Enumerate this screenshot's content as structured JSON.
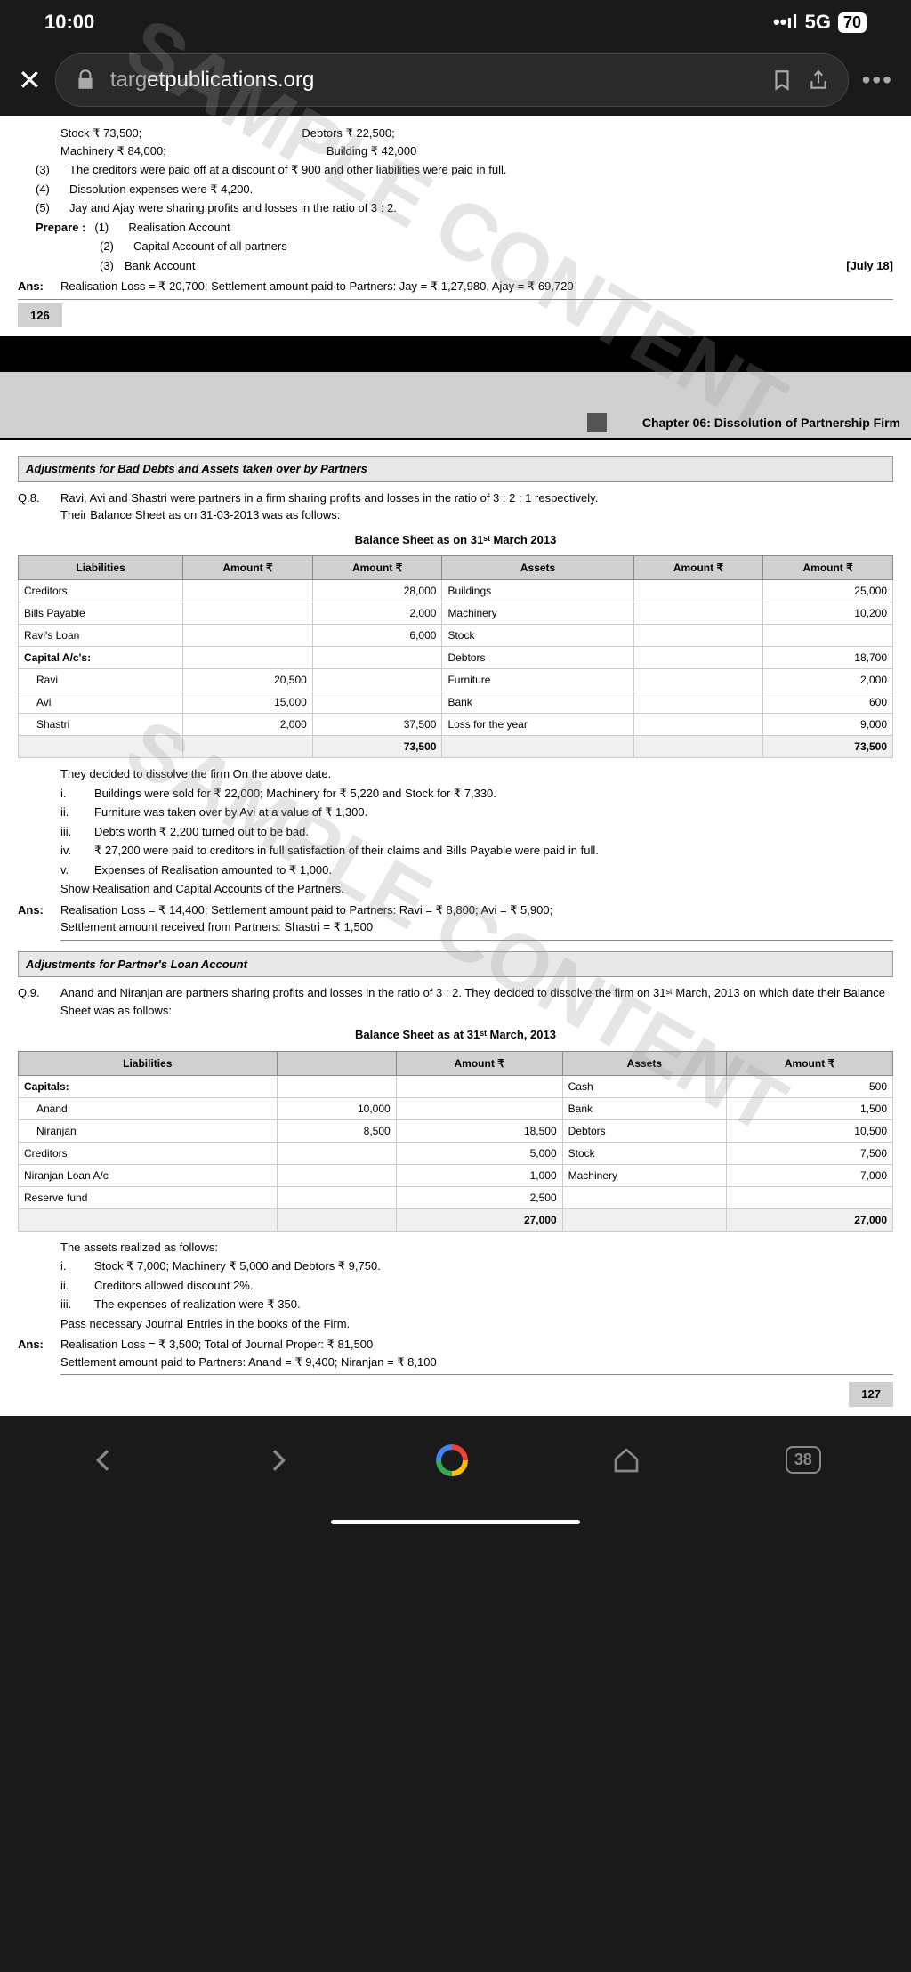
{
  "status": {
    "time": "10:00",
    "signal": "••ıl",
    "network": "5G",
    "battery": "70"
  },
  "nav": {
    "url_prefix": "targ",
    "url_bold": "etpublications.org"
  },
  "page1": {
    "items": [
      {
        "l": "Stock ₹ 73,500;",
        "r": "Debtors ₹ 22,500;"
      },
      {
        "l": "Machinery ₹ 84,000;",
        "r": "Building ₹ 42,000"
      }
    ],
    "points": [
      {
        "n": "(3)",
        "t": "The creditors were paid off at a discount of ₹ 900 and other liabilities were paid in full."
      },
      {
        "n": "(4)",
        "t": "Dissolution expenses were ₹ 4,200."
      },
      {
        "n": "(5)",
        "t": "Jay and Ajay were sharing profits and losses in the ratio of 3 : 2."
      }
    ],
    "prepare_label": "Prepare :",
    "prepare": [
      {
        "n": "(1)",
        "t": "Realisation Account"
      },
      {
        "n": "(2)",
        "t": "Capital Account of all partners"
      },
      {
        "n": "(3)",
        "t": "Bank Account"
      }
    ],
    "date_ref": "[July 18]",
    "ans_label": "Ans:",
    "ans": "Realisation Loss = ₹ 20,700; Settlement amount paid to Partners: Jay = ₹ 1,27,980, Ajay = ₹ 69,720",
    "page_num": "126"
  },
  "chapter": "Chapter 06: Dissolution of Partnership Firm",
  "adj1": {
    "title": "Adjustments for Bad Debts and Assets taken over by Partners",
    "q_num": "Q.8.",
    "q_text1": "Ravi, Avi and Shastri were partners in a firm sharing profits and losses in the ratio of 3 : 2 : 1 respectively.",
    "q_text2": "Their Balance Sheet as on 31-03-2013 was as follows:",
    "table_title": "Balance Sheet as on 31ˢᵗ March 2013",
    "headers": [
      "Liabilities",
      "Amount ₹",
      "Amount ₹",
      "Assets",
      "Amount ₹",
      "Amount ₹"
    ],
    "rows": [
      [
        "Creditors",
        "",
        "28,000",
        "Buildings",
        "",
        "25,000"
      ],
      [
        "Bills Payable",
        "",
        "2,000",
        "Machinery",
        "",
        "10,200"
      ],
      [
        "Ravi's Loan",
        "",
        "6,000",
        "Stock",
        "",
        ""
      ],
      [
        "Capital A/c's:",
        "",
        "",
        "Debtors",
        "",
        "18,700"
      ],
      [
        "  Ravi",
        "20,500",
        "",
        "Furniture",
        "",
        "2,000"
      ],
      [
        "  Avi",
        "15,000",
        "",
        "Bank",
        "",
        "600"
      ],
      [
        "  Shastri",
        "2,000",
        "37,500",
        "Loss for the year",
        "",
        "9,000"
      ]
    ],
    "totals": [
      "",
      "",
      "73,500",
      "",
      "",
      "73,500"
    ],
    "after": "They decided to dissolve the firm On the above date.",
    "list": [
      {
        "n": "i.",
        "t": "Buildings were sold for ₹ 22,000; Machinery for ₹ 5,220 and Stock for ₹ 7,330."
      },
      {
        "n": "ii.",
        "t": "Furniture was taken over by Avi at a value of ₹ 1,300."
      },
      {
        "n": "iii.",
        "t": "Debts worth ₹ 2,200 turned out to be bad."
      },
      {
        "n": "iv.",
        "t": "₹ 27,200 were paid to creditors in full satisfaction of their claims and Bills Payable were paid in full."
      },
      {
        "n": "v.",
        "t": "Expenses of Realisation amounted to ₹ 1,000."
      }
    ],
    "show": "Show Realisation and Capital Accounts of the Partners.",
    "ans_label": "Ans:",
    "ans1": "Realisation Loss = ₹ 14,400; Settlement amount paid to Partners: Ravi = ₹ 8,800; Avi = ₹ 5,900;",
    "ans2": "Settlement amount received from Partners: Shastri = ₹ 1,500"
  },
  "adj2": {
    "title": "Adjustments for Partner's Loan Account",
    "q_num": "Q.9.",
    "q_text1": "Anand and Niranjan are partners sharing profits and losses in the ratio of 3 : 2. They decided to dissolve the firm on 31ˢᵗ March, 2013 on which date their Balance Sheet was as follows:",
    "table_title": "Balance Sheet as at 31ˢᵗ March, 2013",
    "headers": [
      "Liabilities",
      "",
      "Amount ₹",
      "Assets",
      "Amount ₹"
    ],
    "rows": [
      [
        "Capitals:",
        "",
        "",
        "Cash",
        "500"
      ],
      [
        "  Anand",
        "10,000",
        "",
        "Bank",
        "1,500"
      ],
      [
        "  Niranjan",
        "8,500",
        "18,500",
        "Debtors",
        "10,500"
      ],
      [
        "Creditors",
        "",
        "5,000",
        "Stock",
        "7,500"
      ],
      [
        "Niranjan Loan A/c",
        "",
        "1,000",
        "Machinery",
        "7,000"
      ],
      [
        "Reserve fund",
        "",
        "2,500",
        "",
        ""
      ]
    ],
    "totals": [
      "",
      "",
      "27,000",
      "",
      "27,000"
    ],
    "after": "The assets realized as follows:",
    "list": [
      {
        "n": "i.",
        "t": "Stock ₹ 7,000; Machinery ₹ 5,000 and Debtors ₹ 9,750."
      },
      {
        "n": "ii.",
        "t": "Creditors allowed discount 2%."
      },
      {
        "n": "iii.",
        "t": "The expenses of realization were ₹ 350."
      }
    ],
    "pass": "Pass necessary Journal Entries in the books of the Firm.",
    "ans_label": "Ans:",
    "ans1": "Realisation Loss = ₹ 3,500; Total of Journal Proper: ₹ 81,500",
    "ans2": "Settlement amount paid to Partners: Anand = ₹ 9,400; Niranjan = ₹ 8,100",
    "page_num": "127"
  },
  "bottom": {
    "tabs": "38"
  }
}
